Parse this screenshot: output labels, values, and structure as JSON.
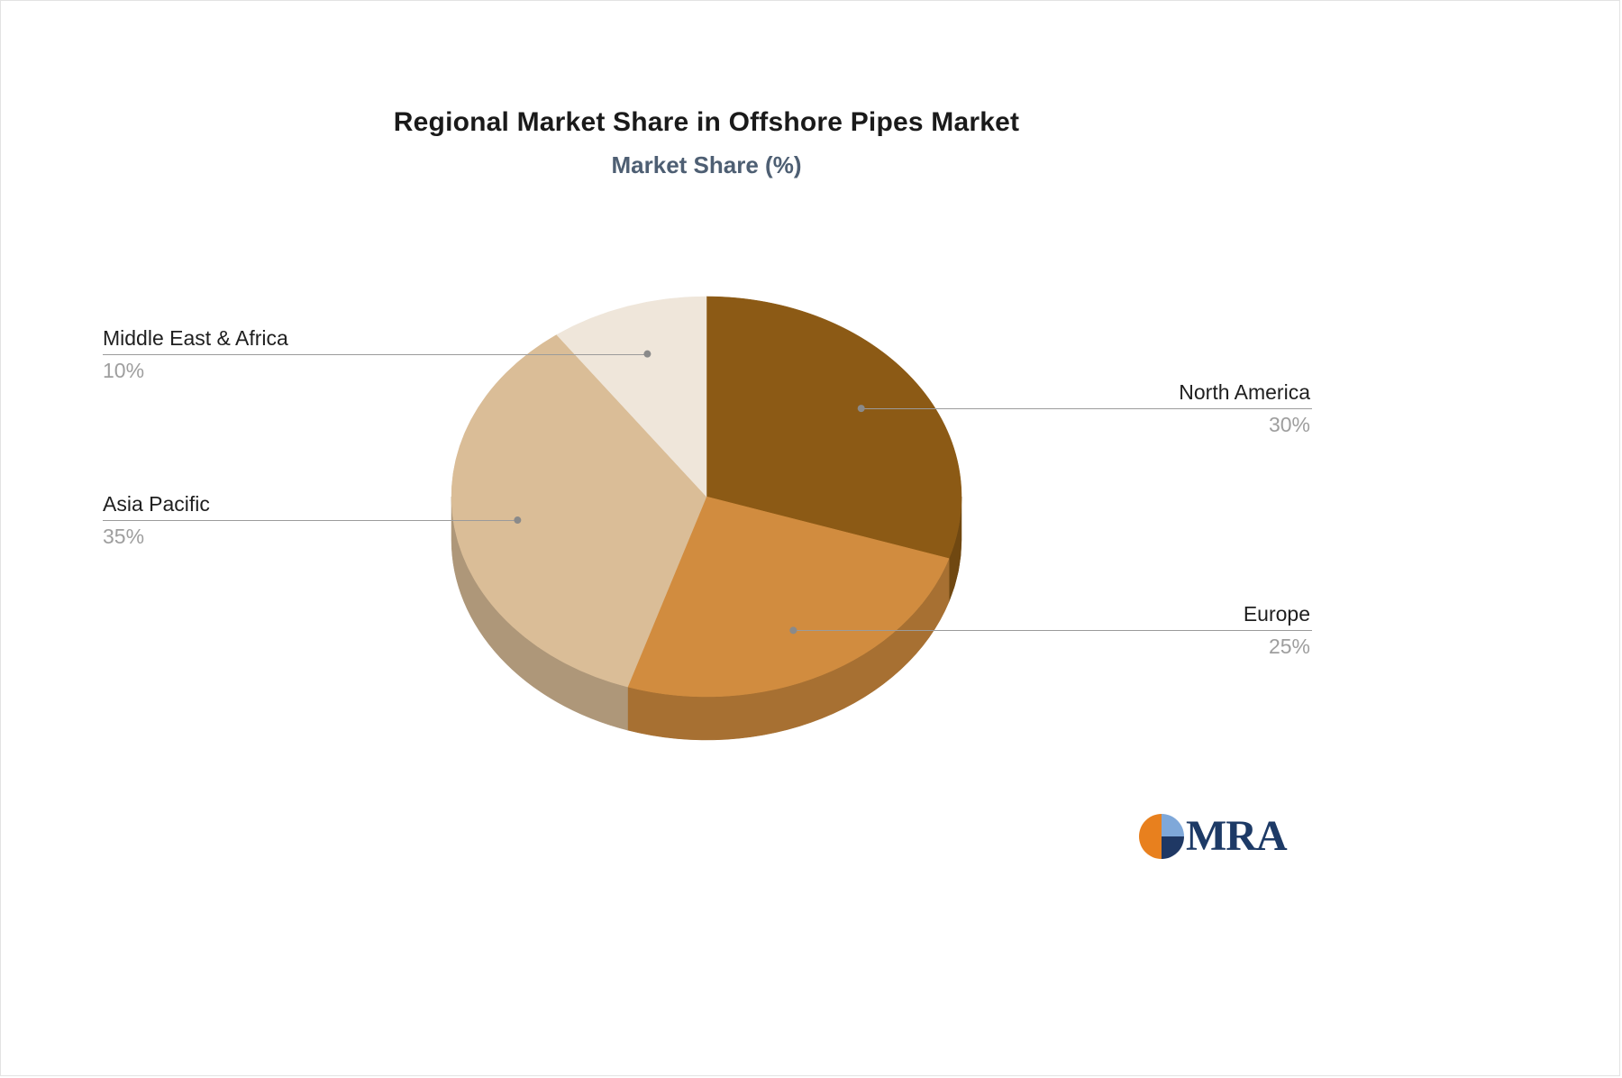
{
  "chart_data": {
    "type": "pie",
    "title": "Regional Market Share in Offshore Pipes Market",
    "subtitle": "Market Share (%)",
    "unit": "%",
    "direction": "clockwise",
    "start_angle_deg": 0,
    "effect": "3d",
    "categories": [
      "North America",
      "Europe",
      "Asia Pacific",
      "Middle East & Africa"
    ],
    "values": [
      30,
      25,
      35,
      10
    ],
    "slices": [
      {
        "label": "North America",
        "value": 30,
        "pct": "30%",
        "color": "#8C5A15",
        "label_side": "right"
      },
      {
        "label": "Europe",
        "value": 25,
        "pct": "25%",
        "color": "#D18C3F",
        "label_side": "right"
      },
      {
        "label": "Asia Pacific",
        "value": 35,
        "pct": "35%",
        "color": "#DABD97",
        "label_side": "left"
      },
      {
        "label": "Middle East & Africa",
        "value": 10,
        "pct": "10%",
        "color": "#EFE6DA",
        "label_side": "left"
      }
    ],
    "title_color": "#1a1a1a",
    "subtitle_color": "#4e5f73",
    "label_color": "#1f1f1f",
    "pct_color": "#9e9e9e",
    "leader_line_color": "#9b9b9b",
    "leader_dot_color": "#8a8a8a",
    "legend_position": "none",
    "grid": false
  },
  "logo": {
    "text": "MRA",
    "colors": {
      "orange": "#E8801E",
      "light_blue": "#7FA8D9",
      "navy": "#1F3864",
      "text": "#1D3A66"
    }
  }
}
